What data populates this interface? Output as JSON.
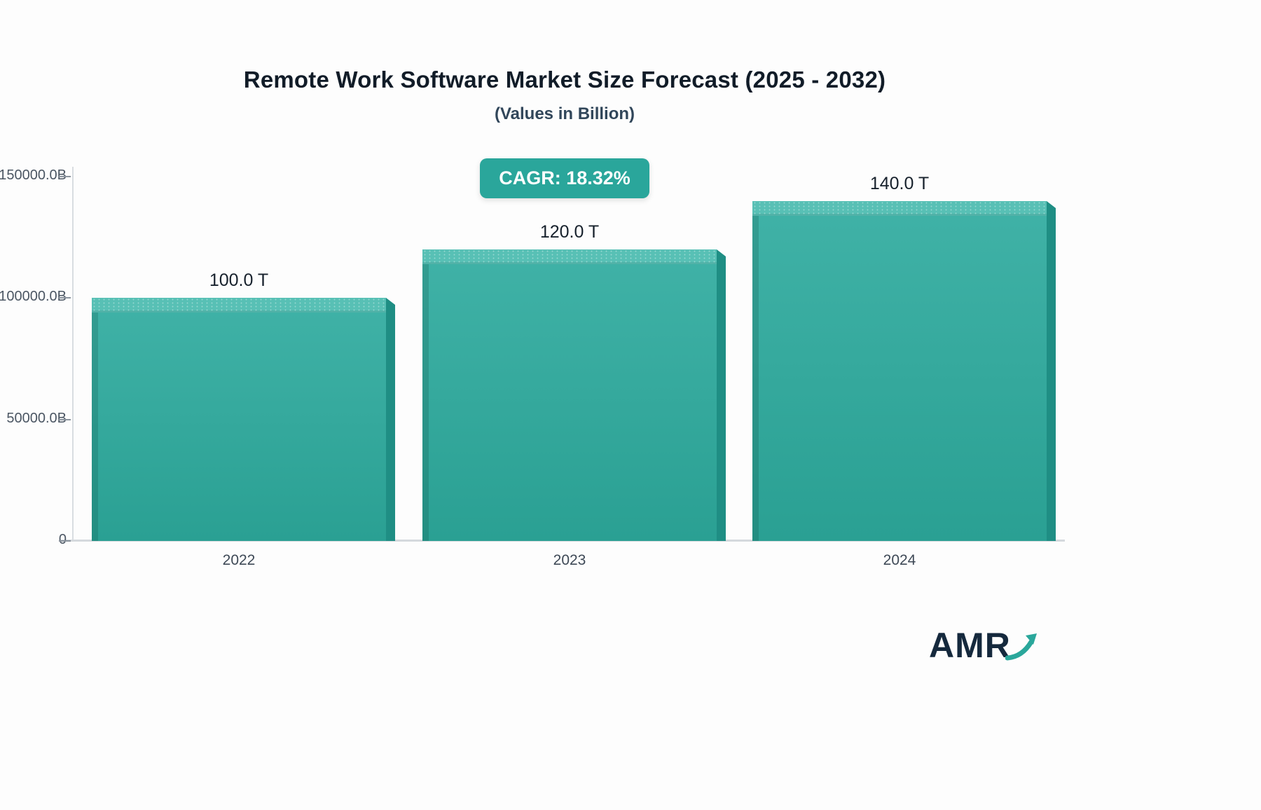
{
  "chart": {
    "title": "Remote Work Software Market Size Forecast (2025 - 2032)",
    "subtitle": "(Values in Billion)",
    "cagr_badge": "CAGR: 18.32%"
  },
  "logo": {
    "text": "AMR"
  },
  "colors": {
    "badge_bg": "#2aa69b",
    "accent_teal": "#2aa79b",
    "logo_navy": "#15293d",
    "bar_main_top": "#40b2a7",
    "bar_main_bottom": "#2aa093",
    "bar_top_band": "#58c0b5",
    "bar_side_right": "#1f8e84"
  },
  "chart_data": {
    "type": "bar",
    "title": "Remote Work Software Market Size Forecast (2025 - 2032)",
    "subtitle": "(Values in Billion)",
    "cagr": "18.32%",
    "categories": [
      "2022",
      "2023",
      "2024"
    ],
    "values": [
      100000,
      120000,
      140000
    ],
    "value_labels": [
      "100.0 T",
      "120.0 T",
      "140.0 T"
    ],
    "ylabel": "",
    "xlabel": "",
    "ylim": [
      0,
      150000
    ],
    "y_ticks_topdown": [
      150000,
      100000,
      50000,
      0
    ],
    "y_tick_labels_topdown": [
      "150000.0B",
      "100000.0B",
      "50000.0B",
      "0"
    ],
    "grid": false,
    "legend": false,
    "bar_color": "#2faa9e"
  }
}
